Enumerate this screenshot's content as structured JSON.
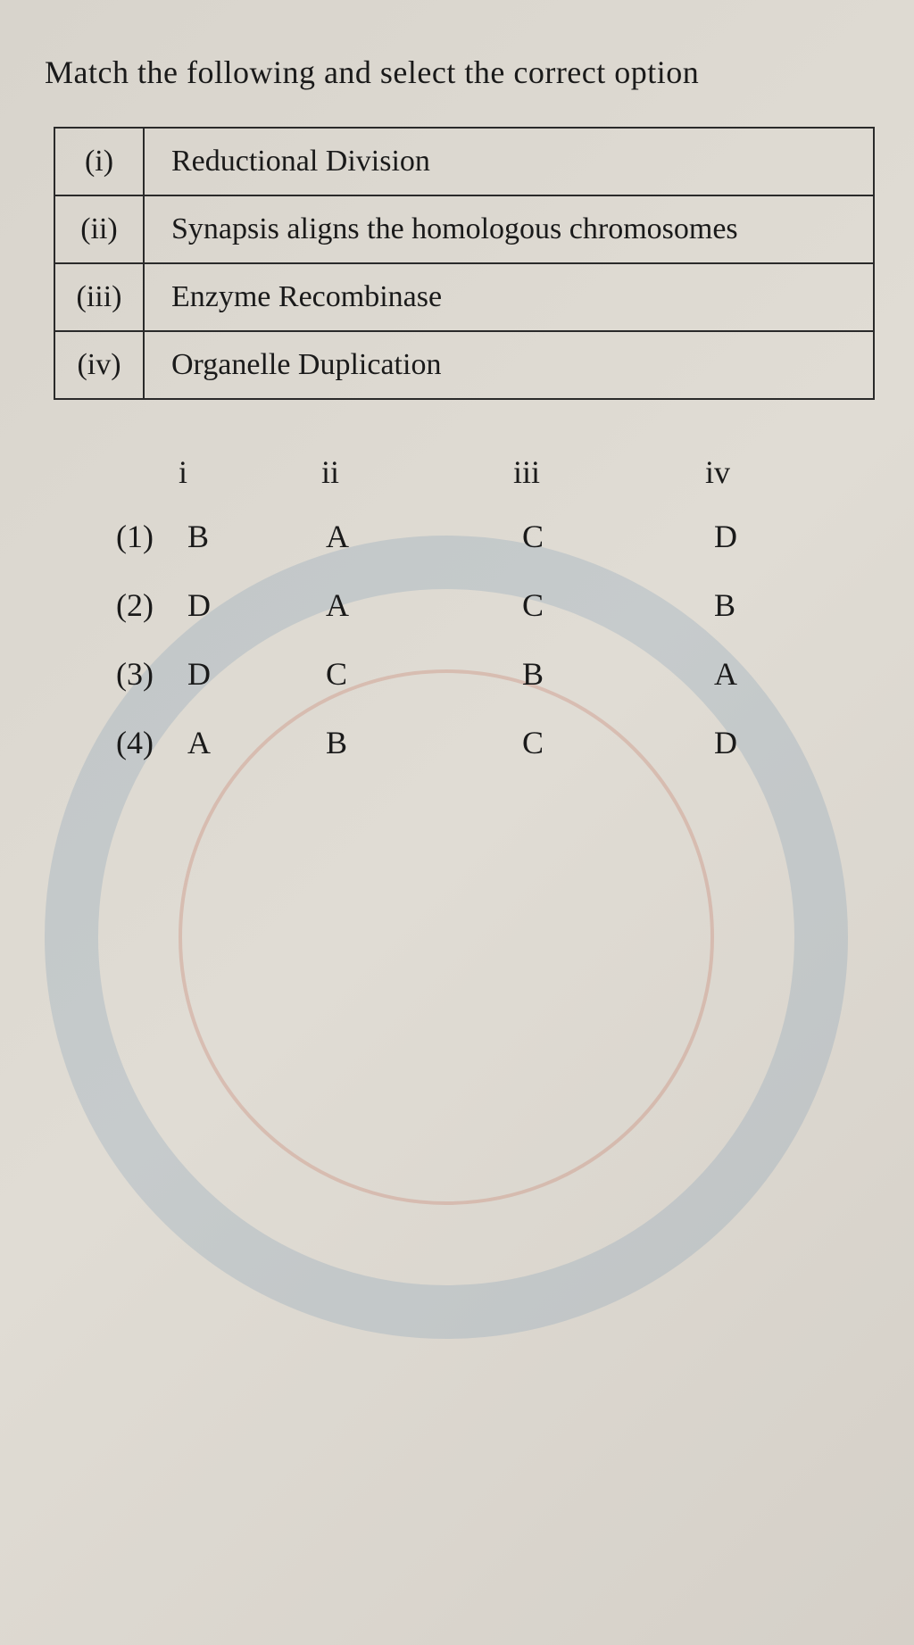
{
  "question": {
    "title": "Match the following and select the correct option",
    "match_items": [
      {
        "roman": "(i)",
        "desc": "Reductional Division"
      },
      {
        "roman": "(ii)",
        "desc": "Synapsis aligns the homologous chromosomes"
      },
      {
        "roman": "(iii)",
        "desc": "Enzyme Recombinase"
      },
      {
        "roman": "(iv)",
        "desc": "Organelle Duplication"
      }
    ],
    "headers": {
      "h1": "i",
      "h2": "ii",
      "h3": "iii",
      "h4": "iv"
    },
    "options": [
      {
        "num": "(1)",
        "v1": "B",
        "v2": "A",
        "v3": "C",
        "v4": "D"
      },
      {
        "num": "(2)",
        "v1": "D",
        "v2": "A",
        "v3": "C",
        "v4": "B"
      },
      {
        "num": "(3)",
        "v1": "D",
        "v2": "C",
        "v3": "B",
        "v4": "A"
      },
      {
        "num": "(4)",
        "v1": "A",
        "v2": "B",
        "v3": "C",
        "v4": "D"
      }
    ]
  },
  "styling": {
    "background_gradient": [
      "#d8d4cc",
      "#e0dcd4",
      "#d5d0c8"
    ],
    "text_color": "#1a1a1a",
    "border_color": "#2a2a2a",
    "watermark_outer_color": "rgba(120,150,180,0.25)",
    "watermark_inner_color": "rgba(200,120,100,0.3)",
    "title_fontsize": 36,
    "table_fontsize": 34,
    "option_fontsize": 36,
    "font_family": "Times New Roman"
  }
}
